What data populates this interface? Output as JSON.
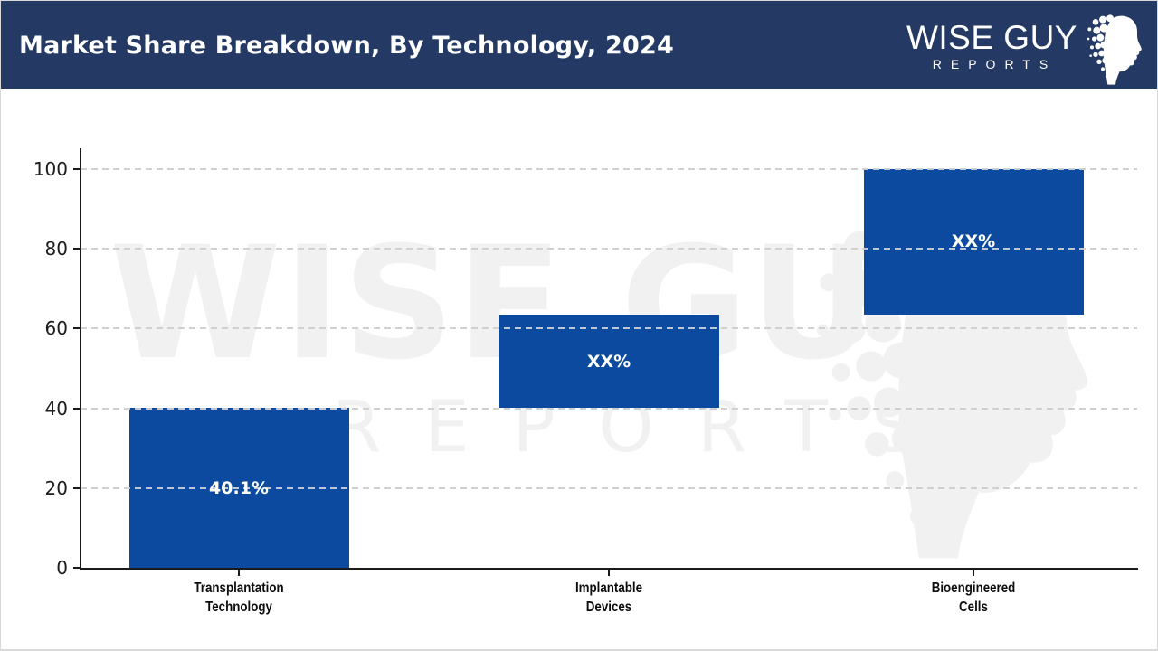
{
  "header": {
    "title": "Market Share Breakdown, By Technology, 2024",
    "logo": {
      "name": "WISE GUY",
      "sub": "REPORTS"
    }
  },
  "watermark": {
    "line1": "WISE GUY",
    "line2": "REPORTS"
  },
  "colors": {
    "header_bg": "#243a64",
    "bar": "#0b4a9e",
    "grid": "#cecece",
    "axis": "#1a1a1a",
    "bar_label_text": "#ffffff",
    "watermark": "#f1f1f2",
    "page_border": "#d9d9d9"
  },
  "chart_data": {
    "type": "bar",
    "variant": "floating-waterfall",
    "title": "Market Share Breakdown, By Technology, 2024",
    "categories": [
      [
        "Transplantation",
        "Technology"
      ],
      [
        "Implantable",
        "Devices"
      ],
      [
        "Bioengineered",
        "Cells"
      ]
    ],
    "segments": [
      {
        "category": "Transplantation Technology",
        "start": 0,
        "end": 40.1,
        "label": "40.1%"
      },
      {
        "category": "Implantable Devices",
        "start": 40.1,
        "end": 63.5,
        "label": "XX%"
      },
      {
        "category": "Bioengineered Cells",
        "start": 63.5,
        "end": 100,
        "label": "XX%"
      }
    ],
    "yticks": [
      0,
      20,
      40,
      60,
      80,
      100
    ],
    "ylim": [
      0,
      105
    ],
    "ylabel": "",
    "xlabel": "",
    "grid": "dashed-horizontal",
    "grid_above_bars": true,
    "legend": "none",
    "bar_color": "#0b4a9e"
  }
}
